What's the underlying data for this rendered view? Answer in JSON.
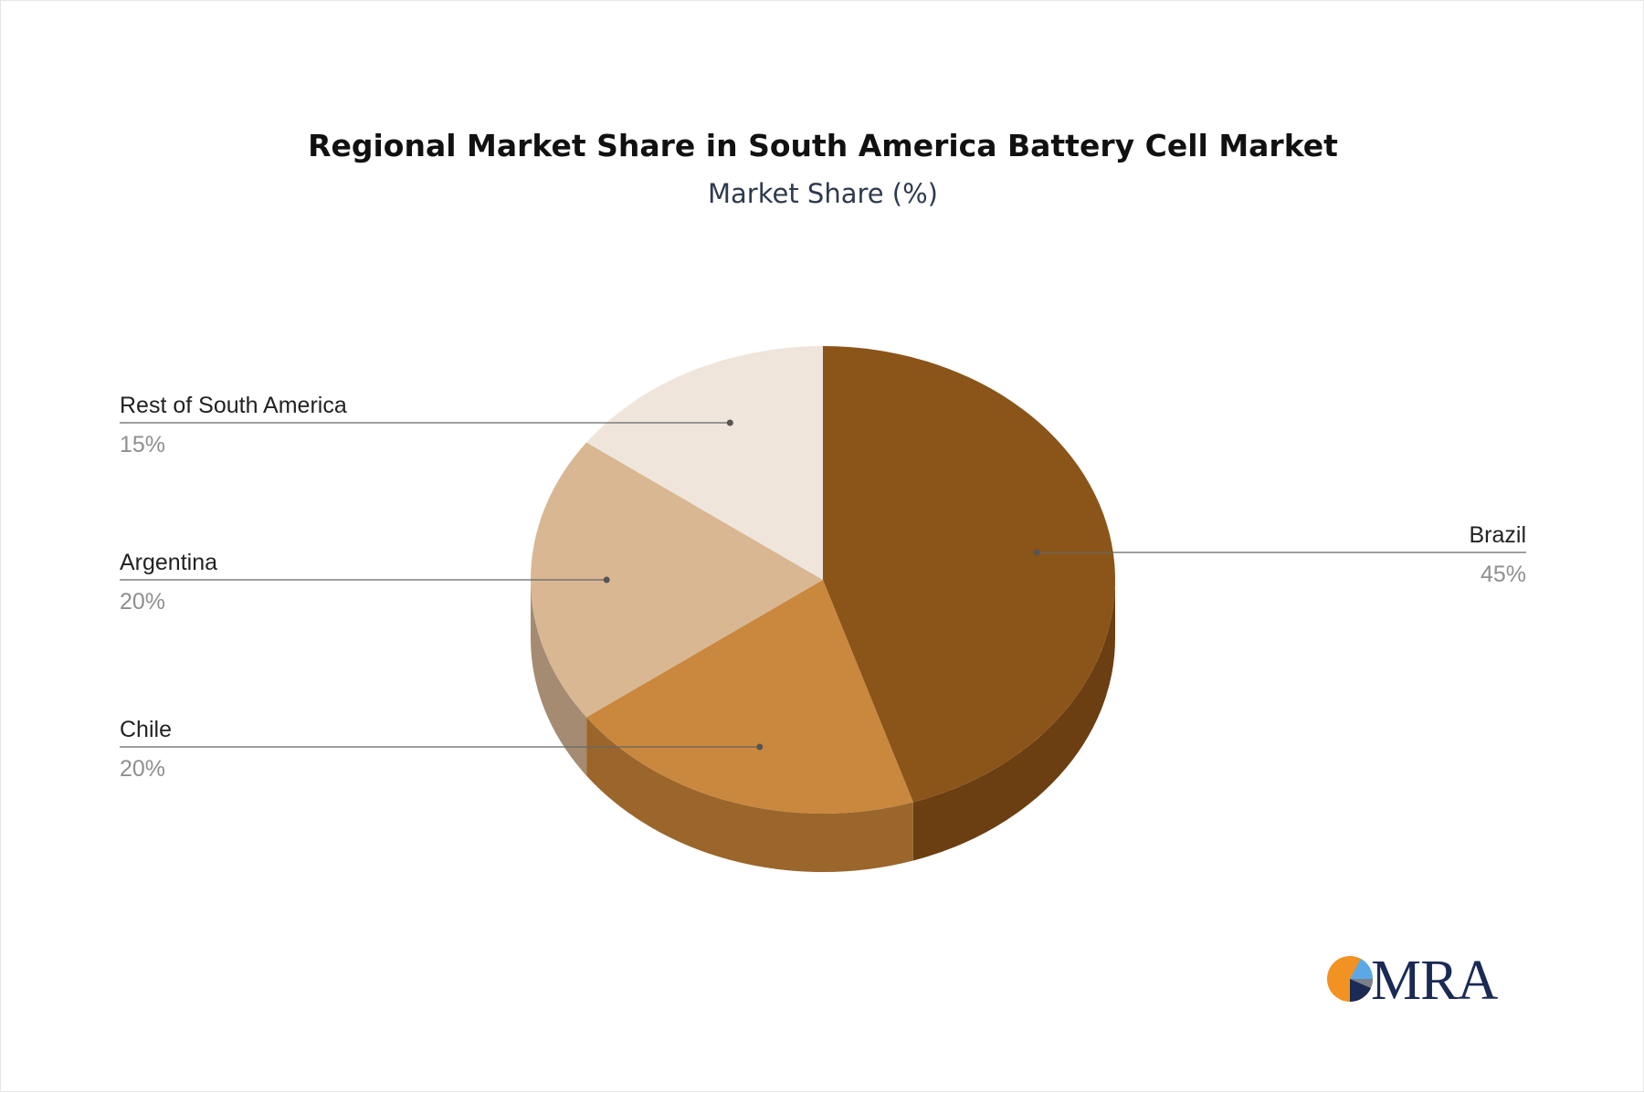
{
  "chart_data": {
    "type": "pie",
    "title": "Regional Market Share in South America Battery Cell Market",
    "subtitle": "Market Share (%)",
    "categories": [
      "Brazil",
      "Chile",
      "Argentina",
      "Rest of South America"
    ],
    "values": [
      45,
      20,
      20,
      15
    ],
    "value_labels": [
      "45%",
      "20%",
      "20%",
      "15%"
    ],
    "colors": [
      "#8b5419",
      "#c9883d",
      "#d8b792",
      "#efe5db"
    ],
    "side_colors": [
      "#6b3f12",
      "#9a662c",
      "#a58b72",
      "#bdb3aa"
    ],
    "start_angle": "12 o'clock",
    "direction": "clockwise",
    "style": "3d"
  },
  "logo": {
    "text": "MRA",
    "colors": {
      "orange": "#f29222",
      "navy": "#1b2a55",
      "light_blue": "#5aa9e6",
      "grey": "#7a8089"
    }
  }
}
